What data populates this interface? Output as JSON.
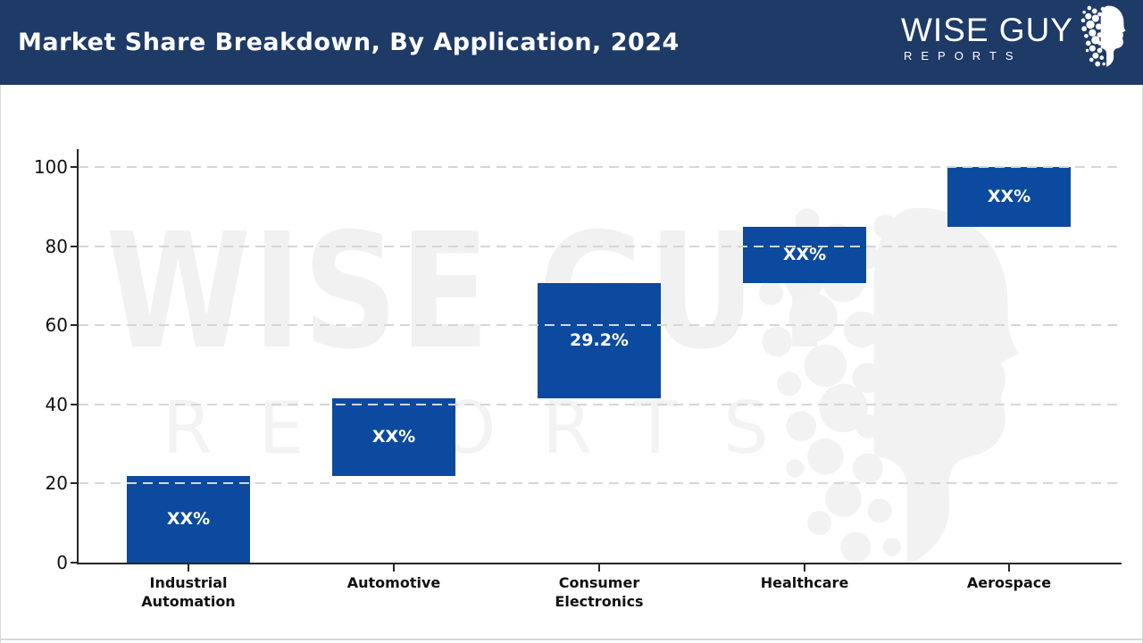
{
  "header": {
    "title": "Market Share Breakdown, By Application, 2024",
    "background_color": "#1e3a67",
    "logo_line1": "WISE GUY",
    "logo_line2": "REPORTS"
  },
  "watermark": {
    "line1": "WISE GUY",
    "line2": "REPORTS"
  },
  "chart_data": {
    "type": "bar",
    "subtype": "waterfall",
    "title": "Market Share Breakdown, By Application, 2024",
    "categories": [
      "Industrial Automation",
      "Automotive",
      "Consumer Electronics",
      "Healthcare",
      "Aerospace"
    ],
    "segments": [
      {
        "category": "Industrial Automation",
        "start": 0,
        "end": 22,
        "label": "XX%"
      },
      {
        "category": "Automotive",
        "start": 22,
        "end": 41.5,
        "label": "XX%"
      },
      {
        "category": "Consumer Electronics",
        "start": 41.5,
        "end": 70.7,
        "label": "29.2%"
      },
      {
        "category": "Healthcare",
        "start": 70.7,
        "end": 84.9,
        "label": "XX%"
      },
      {
        "category": "Aerospace",
        "start": 84.9,
        "end": 100,
        "label": "XX%"
      }
    ],
    "y_ticks": [
      0,
      20,
      40,
      60,
      80,
      100
    ],
    "ylim": [
      0,
      100
    ],
    "xlabel": "",
    "ylabel": "",
    "grid": "horizontal-dashed",
    "legend": "none",
    "bar_color": "#0b4a9e",
    "bar_label_color": "#ffffff",
    "axis_color": "#262626",
    "grid_color": "#d6d6d6"
  }
}
